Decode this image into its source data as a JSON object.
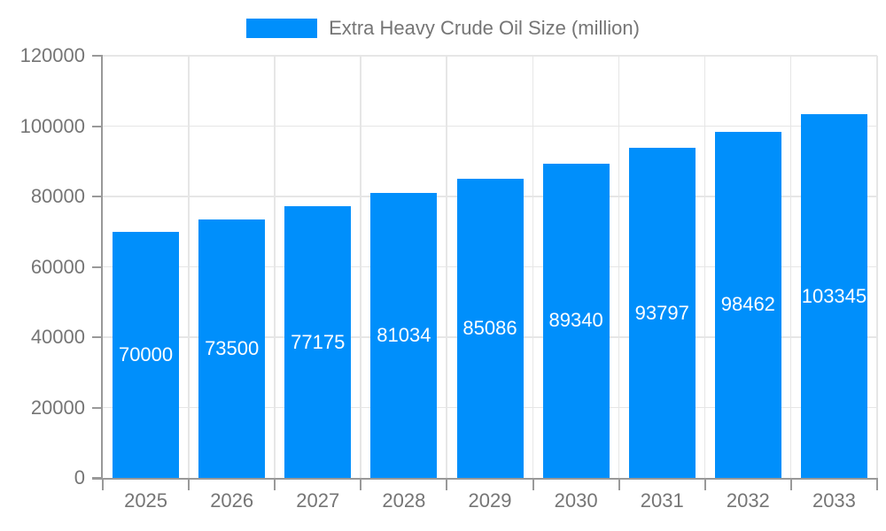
{
  "chart_data": {
    "type": "bar",
    "title": "",
    "legend": "Extra Heavy Crude Oil Size (million)",
    "legend_position": "top-center",
    "categories": [
      "2025",
      "2026",
      "2027",
      "2028",
      "2029",
      "2030",
      "2031",
      "2032",
      "2033"
    ],
    "values": [
      70000,
      73500,
      77175,
      81034,
      85086,
      89340,
      93797,
      98462,
      103345
    ],
    "xlabel": "",
    "ylabel": "",
    "ylim": [
      0,
      120000
    ],
    "ytick_step": 20000,
    "ytick_labels": [
      "0",
      "20000",
      "40000",
      "60000",
      "80000",
      "100000",
      "120000"
    ],
    "grid": "both",
    "bar_labels_inside": "centered-white-clipped",
    "colors": {
      "bar": "#008FFB",
      "bar_label": "#FFFFFF",
      "axis_text": "#757575",
      "axis_line": "#999999",
      "gridline": "#E6E6E6",
      "background": "#FFFFFF"
    }
  }
}
